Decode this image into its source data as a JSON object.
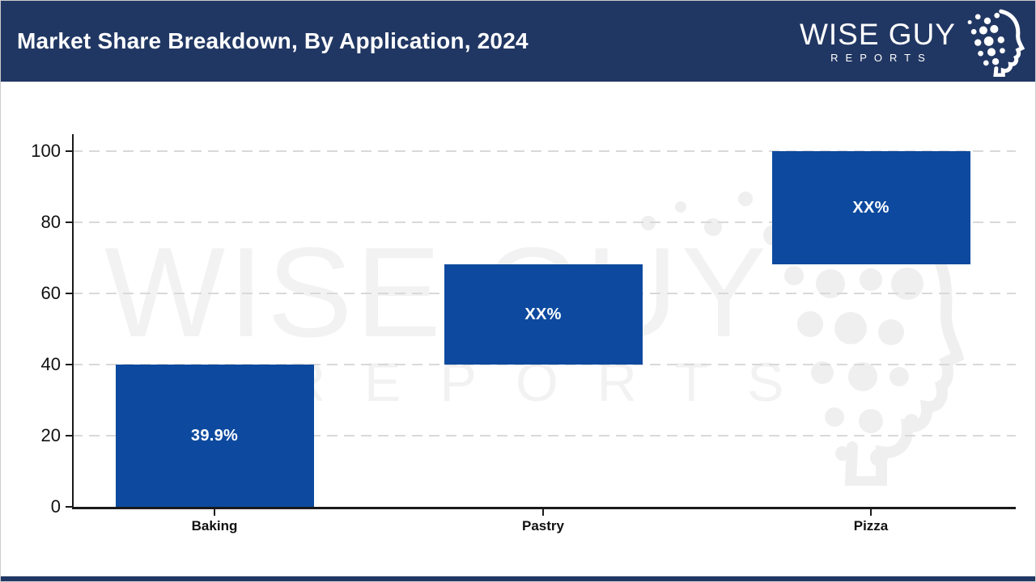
{
  "header": {
    "title": "Market Share Breakdown, By Application, 2024",
    "logo": {
      "line1": "WISE GUY",
      "line2": "REPORTS"
    }
  },
  "watermark": {
    "line1": "WISE GUY",
    "line2": "REPORTS"
  },
  "colors": {
    "header_bg": "#213763",
    "bar": "#0d4a9f",
    "grid": "#d9d9d9",
    "axis": "#1a1a1a",
    "bar_label": "#ffffff",
    "watermark": "#f2f2f2"
  },
  "chart_data": {
    "type": "bar",
    "subtype": "stacked-waterfall",
    "title": "Market Share Breakdown, By Application, 2024",
    "categories": [
      "Baking",
      "Pastry",
      "Pizza"
    ],
    "series": [
      {
        "name": "Market Share",
        "segments": [
          {
            "category": "Baking",
            "start": 0,
            "end": 39.9,
            "label": "39.9%"
          },
          {
            "category": "Pastry",
            "start": 39.9,
            "end": 68.1,
            "label": "XX%"
          },
          {
            "category": "Pizza",
            "start": 68.1,
            "end": 100,
            "label": "XX%"
          }
        ]
      }
    ],
    "ylim": [
      0,
      100
    ],
    "yticks": [
      0,
      20,
      40,
      60,
      80,
      100
    ],
    "ytick_labels": [
      "0",
      "20",
      "40",
      "60",
      "80",
      "100"
    ],
    "xlabel": "",
    "ylabel": "",
    "grid": "horizontal-dashed",
    "legend": "none"
  }
}
